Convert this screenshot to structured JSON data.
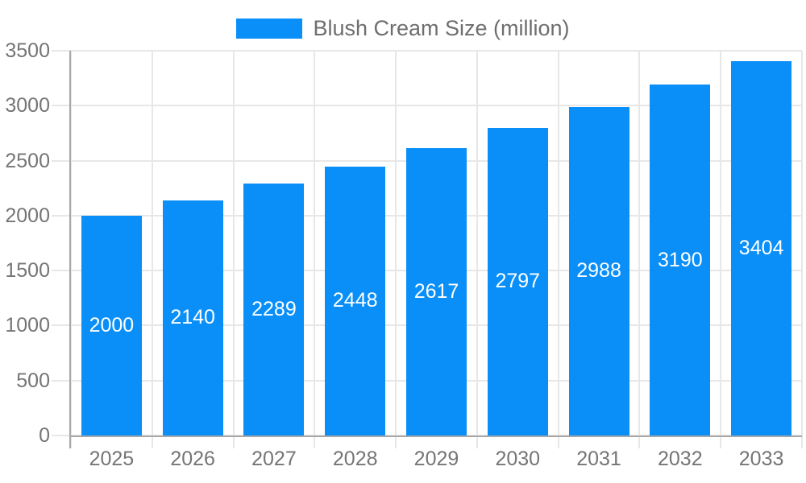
{
  "chart_data": {
    "type": "bar",
    "title": "Blush Cream Size (million)",
    "legend": {
      "label": "Blush Cream Size (million)",
      "position": "top-center"
    },
    "categories": [
      "2025",
      "2026",
      "2027",
      "2028",
      "2029",
      "2030",
      "2031",
      "2032",
      "2033"
    ],
    "values": [
      2000,
      2140,
      2289,
      2448,
      2617,
      2797,
      2988,
      3190,
      3404
    ],
    "xlabel": "",
    "ylabel": "",
    "ylim": [
      0,
      3500
    ],
    "yticks": [
      0,
      500,
      1000,
      1500,
      2000,
      2500,
      3000,
      3500
    ],
    "grid": true,
    "value_labels": "centered-inside-bars",
    "colors": {
      "bar": "#0a8ff8",
      "value_label": "#ffffff",
      "grid": "#e7e7e7",
      "axis": "#a8a8a8",
      "tick_label": "#757575",
      "legend_label": "#6e6e6e",
      "background": "#ffffff"
    }
  }
}
